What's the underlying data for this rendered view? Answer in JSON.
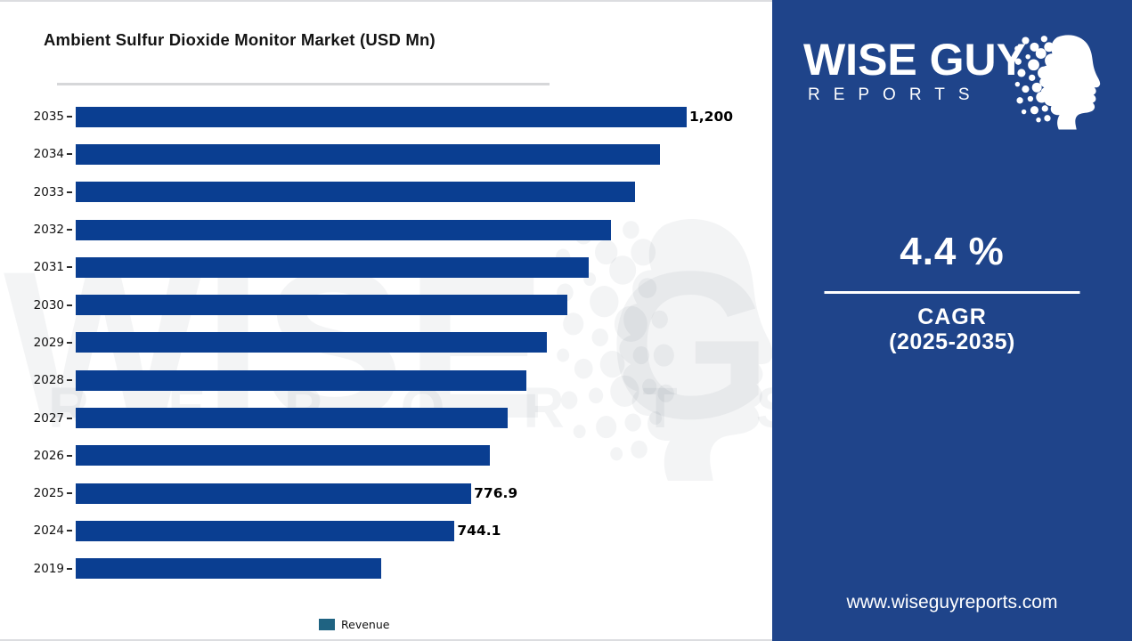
{
  "chart": {
    "title": "Ambient Sulfur Dioxide Monitor Market (USD Mn)",
    "legend_label": "Revenue"
  },
  "chart_data": {
    "type": "bar",
    "orientation": "horizontal",
    "title": "Ambient Sulfur Dioxide Monitor Market (USD Mn)",
    "xlabel": "",
    "ylabel": "",
    "categories": [
      "2035",
      "2034",
      "2033",
      "2032",
      "2031",
      "2030",
      "2029",
      "2028",
      "2027",
      "2026",
      "2025",
      "2024",
      "2019"
    ],
    "values": [
      1200,
      1147,
      1098,
      1052,
      1007,
      965,
      925,
      885,
      848,
      813,
      776.9,
      744.1,
      600
    ],
    "bar_labels": [
      "1,200",
      "",
      "",
      "",
      "",
      "",
      "",
      "",
      "",
      "",
      "776.9",
      "744.1",
      ""
    ],
    "xlim": [
      0,
      1200
    ],
    "grid": false,
    "legend_position": "bottom",
    "legend": [
      {
        "label": "Revenue",
        "color": "#1f6382"
      }
    ],
    "bar_color": "#0a3e91",
    "value_label_color": "#000000"
  },
  "watermark": {
    "line1": "WISE GUY",
    "line2": "REPORTS",
    "icon": "head-profile-dots-icon"
  },
  "panel": {
    "background_color": "#1f448a",
    "logo_line1": "WISE GUY",
    "logo_line2": "REPORTS",
    "logo_icon": "head-profile-dots-icon",
    "cagr_value": "4.4 %",
    "cagr_label": "CAGR",
    "cagr_range": "(2025-2035)",
    "website": "www.wiseguyreports.com"
  }
}
